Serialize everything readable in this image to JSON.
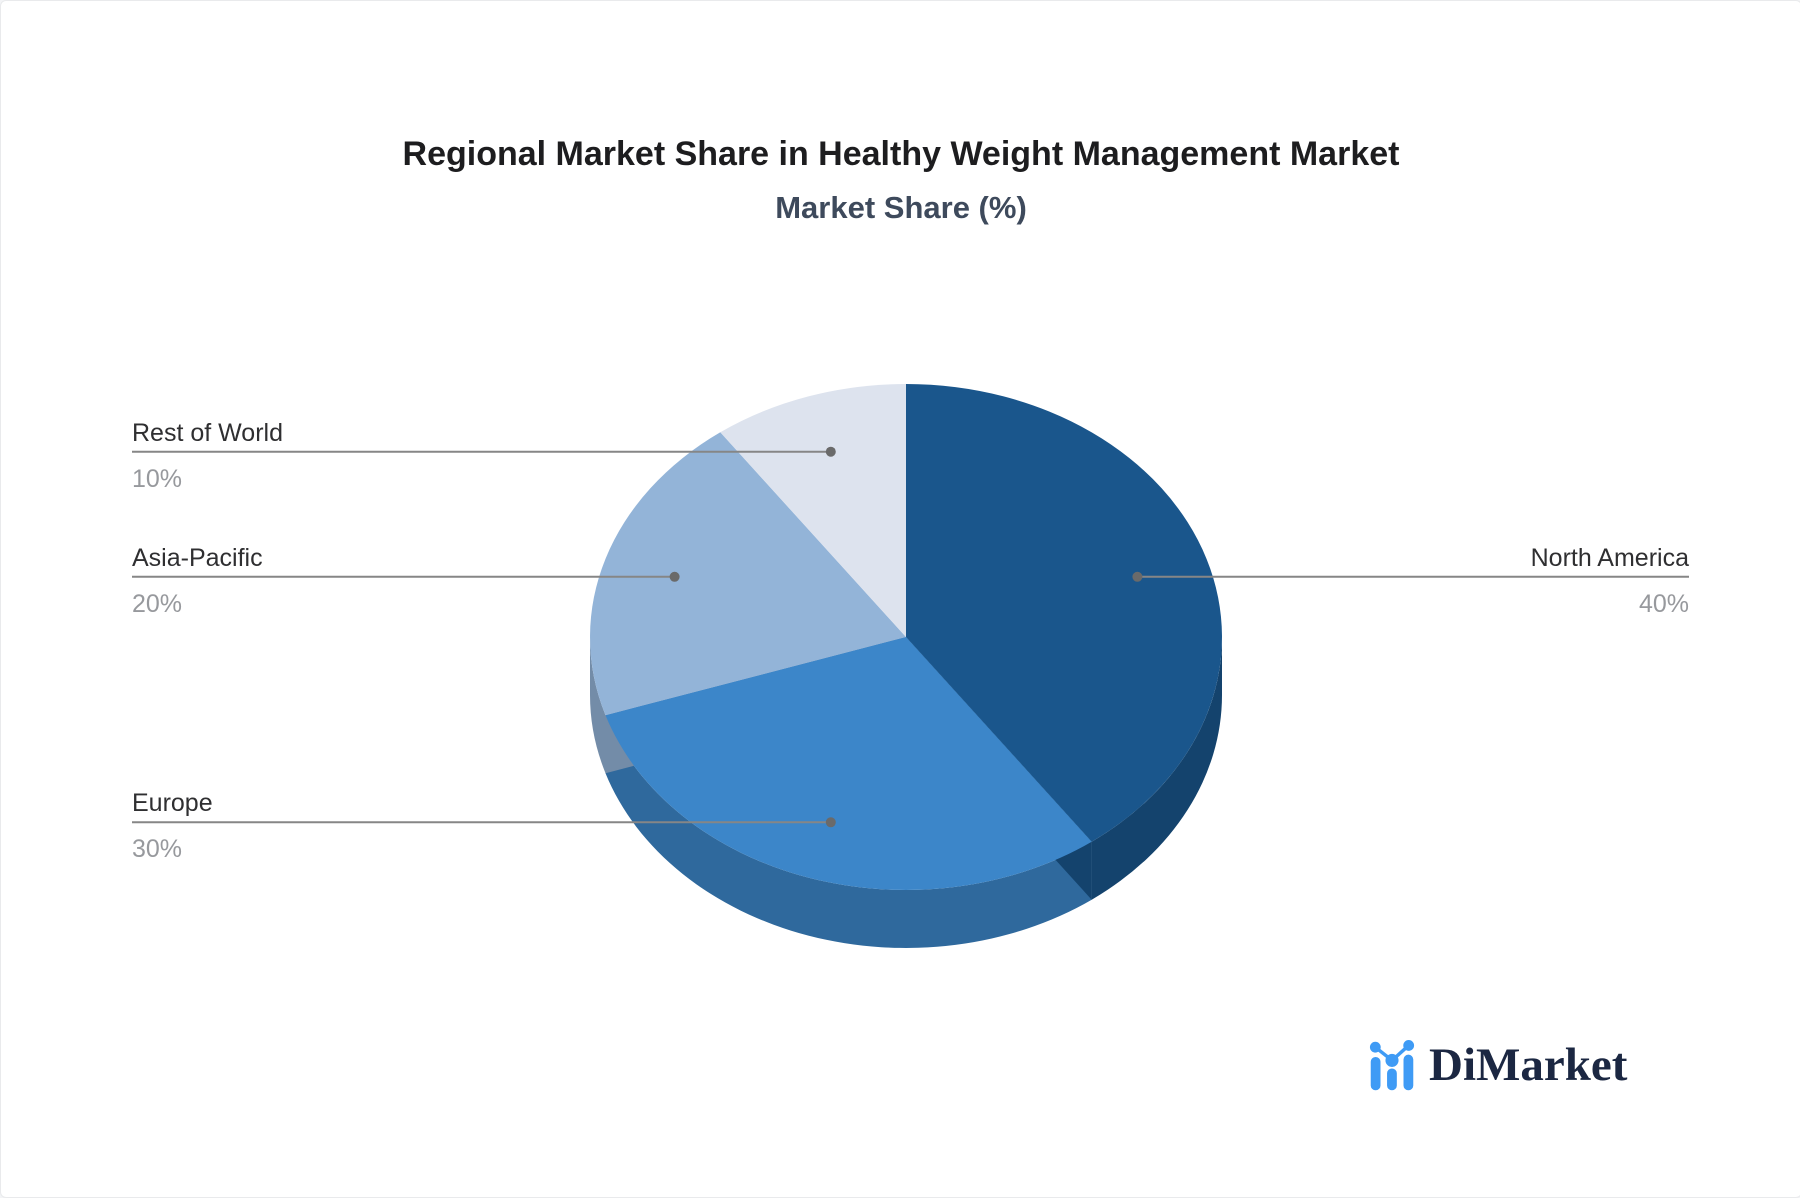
{
  "title": "Regional Market Share in Healthy Weight Management Market",
  "subtitle": "Market Share (%)",
  "brand": {
    "name": "DiMarket",
    "icon": "bar-line-chart-icon",
    "text_color": "#1b2742",
    "icon_color": "#3f9bf5"
  },
  "chart_data": {
    "type": "pie",
    "title": "Regional Market Share in Healthy Weight Management Market",
    "subtitle": "Market Share (%)",
    "unit": "%",
    "effect": "3d",
    "start_angle_deg": 0,
    "direction": "clockwise",
    "legend_position": "leader-lines",
    "categories": [
      "North America",
      "Europe",
      "Asia-Pacific",
      "Rest of World"
    ],
    "values": [
      40,
      30,
      20,
      10
    ],
    "value_labels": [
      "40%",
      "30%",
      "20%",
      "10%"
    ],
    "colors": [
      "#1a568c",
      "#3c86c9",
      "#93b4d8",
      "#dde3ee"
    ],
    "label_sides": [
      "right",
      "left",
      "left",
      "left"
    ],
    "leader_line_color": "#868686",
    "leader_dot_color": "#6a6a6a",
    "label_text_color": "#2f2f31",
    "value_text_color": "#97999d"
  }
}
